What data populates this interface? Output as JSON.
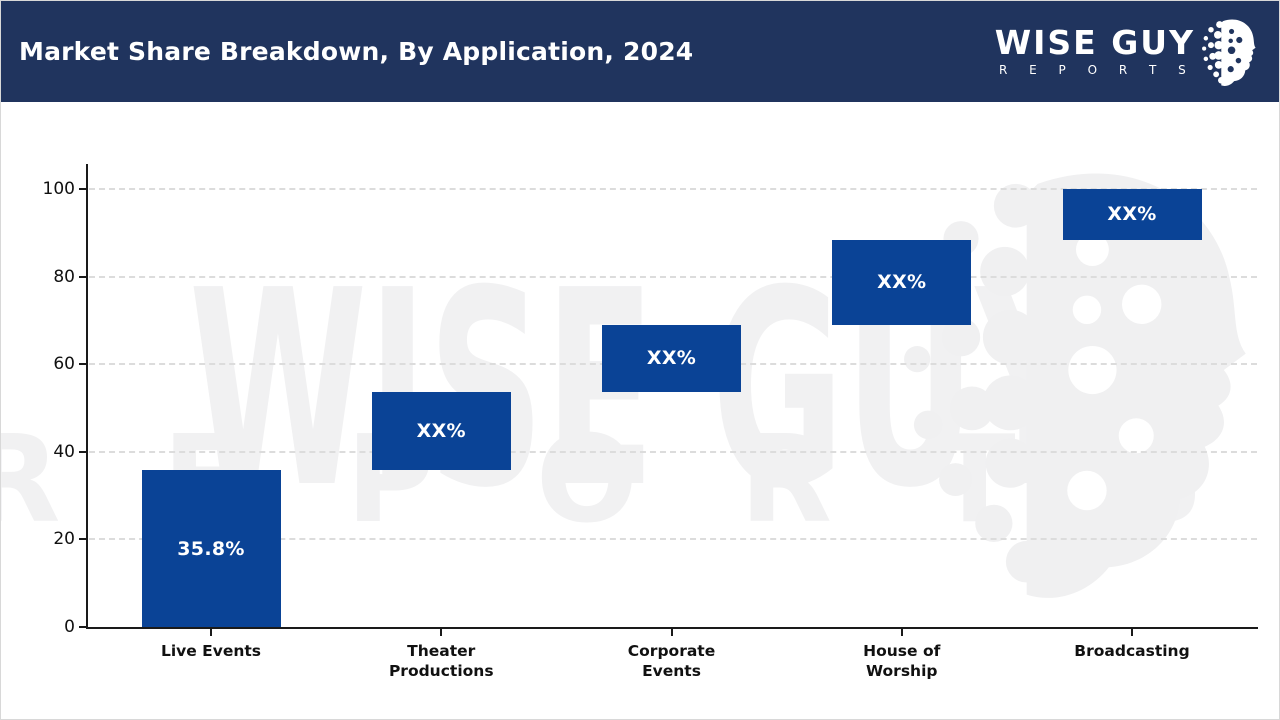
{
  "header": {
    "title": "Market Share Breakdown, By Application, 2024",
    "background_color": "#20345e",
    "logo": {
      "line1": "WISE GUY",
      "line2": "R E P O R T S"
    }
  },
  "watermark": {
    "line1": "WISE GUY",
    "line2": "R E P O R T S"
  },
  "chart_data": {
    "type": "bar",
    "subtype": "waterfall (floating segment bars, cumulative market share)",
    "title": "Market Share Breakdown, By Application, 2024",
    "xlabel": "",
    "ylabel": "",
    "ylim": [
      0,
      100
    ],
    "yticks": [
      0,
      20,
      40,
      60,
      80,
      100
    ],
    "grid": "horizontal dashed",
    "legend": "none",
    "bar_color": "#0a4396",
    "bar_label_color": "#ffffff",
    "categories": [
      "Live Events",
      "Theater Productions",
      "Corporate Events",
      "House of Worship",
      "Broadcasting"
    ],
    "segments": [
      {
        "category": "Live Events",
        "from": 0,
        "to": 35.8,
        "label": "35.8%"
      },
      {
        "category": "Theater Productions",
        "from": 35.8,
        "to": 53.7,
        "label": "XX%"
      },
      {
        "category": "Corporate Events",
        "from": 53.7,
        "to": 69.0,
        "label": "XX%"
      },
      {
        "category": "House of Worship",
        "from": 69.0,
        "to": 88.4,
        "label": "XX%"
      },
      {
        "category": "Broadcasting",
        "from": 88.4,
        "to": 100.0,
        "label": "XX%"
      }
    ]
  }
}
